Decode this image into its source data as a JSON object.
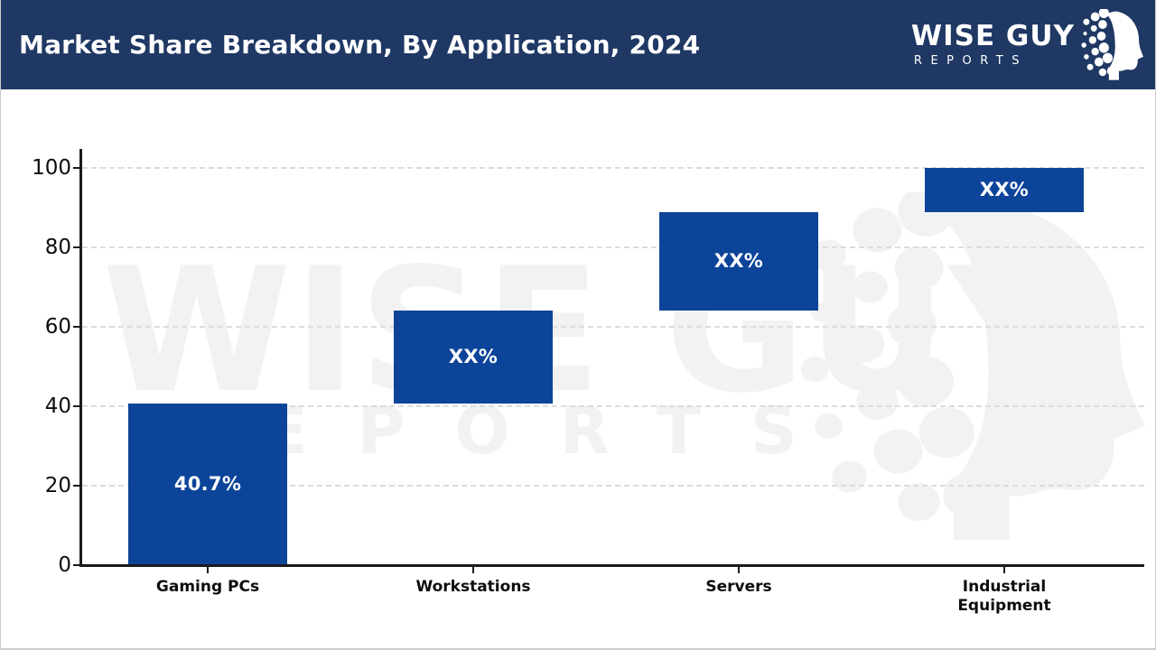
{
  "header": {
    "title": "Market Share Breakdown, By Application, 2024",
    "background_color": "#1f3864"
  },
  "logo": {
    "line1": "WISE GUY",
    "line2": "REPORTS",
    "icon": "head-dots-icon"
  },
  "watermark": {
    "line1": "WISE GUY",
    "line2": "REPORTS",
    "icon": "head-dots-icon"
  },
  "chart_data": {
    "type": "bar",
    "subtype": "waterfall",
    "title": "Market Share Breakdown, By Application, 2024",
    "categories": [
      "Gaming PCs",
      "Workstations",
      "Servers",
      "Industrial Equipment"
    ],
    "segments": [
      {
        "category": "Gaming PCs",
        "start": 0,
        "end": 40.7,
        "label": "40.7%"
      },
      {
        "category": "Workstations",
        "start": 40.7,
        "end": 64.1,
        "label": "XX%"
      },
      {
        "category": "Servers",
        "start": 64.1,
        "end": 88.9,
        "label": "XX%"
      },
      {
        "category": "Industrial Equipment",
        "start": 88.9,
        "end": 100,
        "label": "XX%"
      }
    ],
    "ylim": [
      0,
      104
    ],
    "yticks": [
      0,
      20,
      40,
      60,
      80,
      100
    ],
    "xlabel": "",
    "ylabel": "",
    "grid": "horizontal-dashed",
    "legend": "none",
    "bar_color": "#0c4499",
    "bar_label_color": "#ffffff",
    "axis_color": "#1a1a1a",
    "grid_color": "#dcdcdc"
  }
}
